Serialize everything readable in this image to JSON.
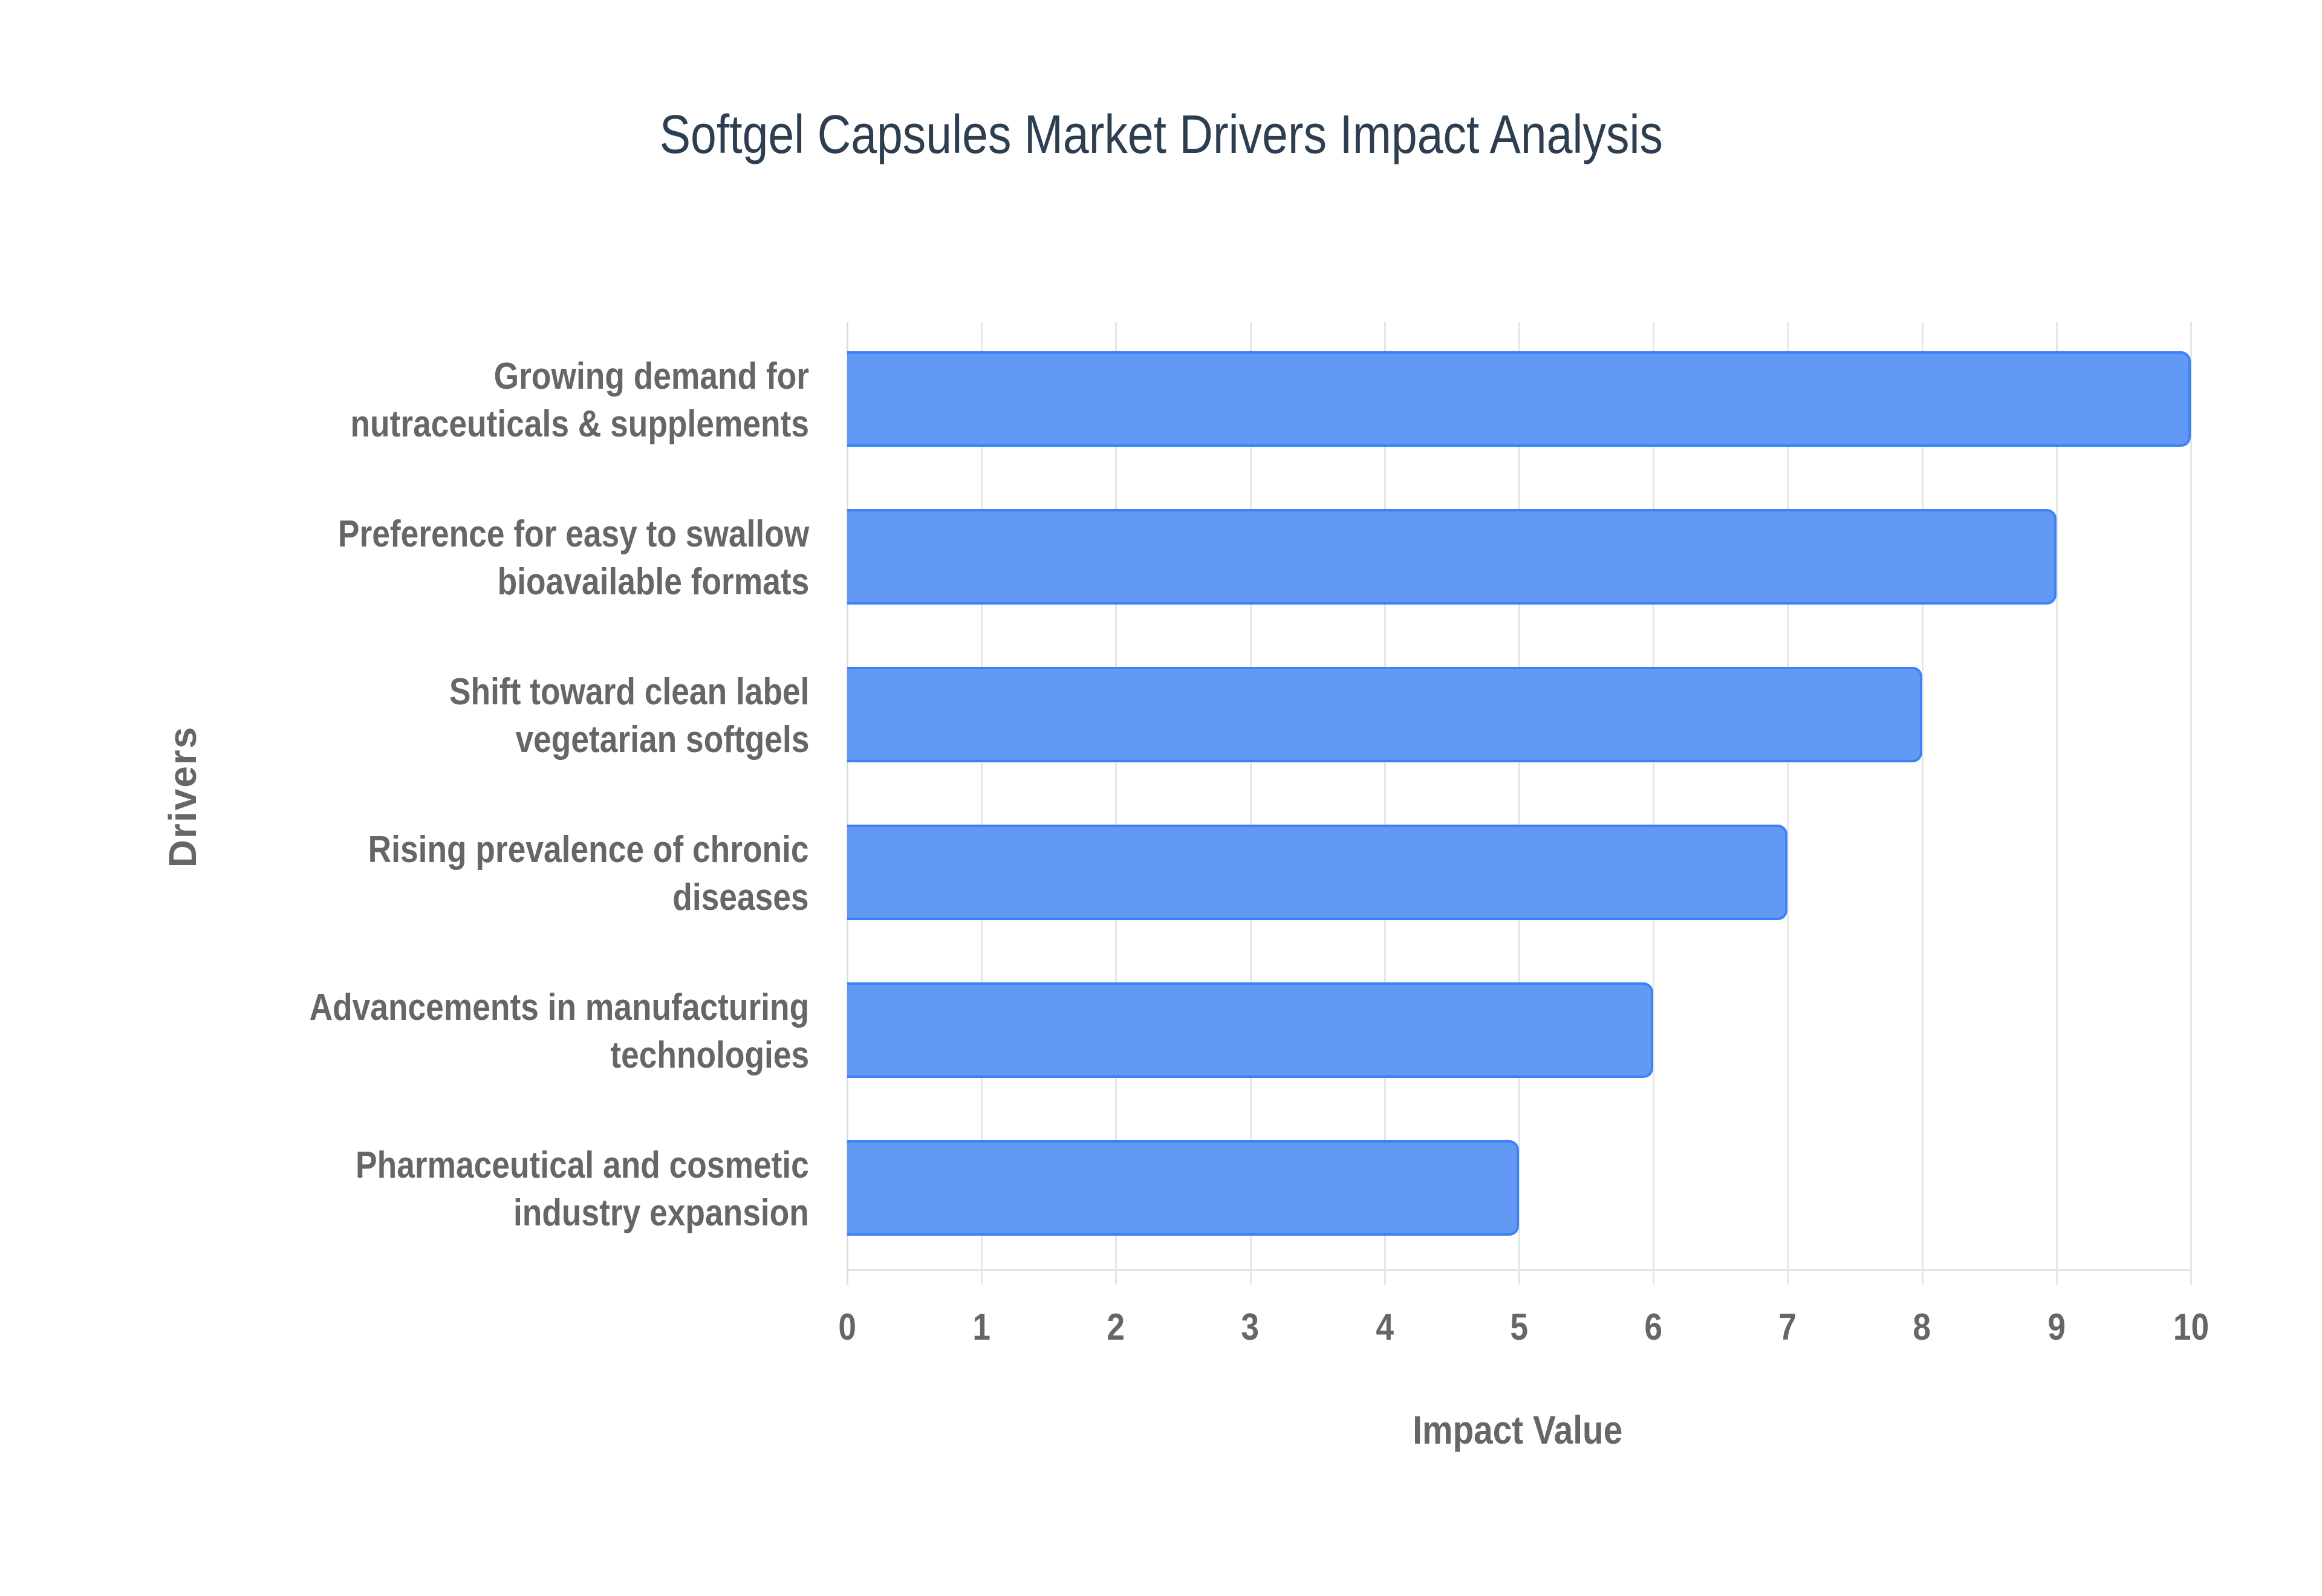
{
  "title": "Softgel Capsules Market Drivers Impact Analysis",
  "axes": {
    "x_title": "Impact Value",
    "y_title": "Drivers",
    "x_ticks": [
      "0",
      "1",
      "2",
      "3",
      "4",
      "5",
      "6",
      "7",
      "8",
      "9",
      "10"
    ]
  },
  "colors": {
    "bar_fill": "#6299f5",
    "bar_border": "#3b82f6",
    "title": "#2c3e50",
    "label": "#666666",
    "grid": "#e6e6e6"
  },
  "rows": [
    {
      "label_lines": [
        "Growing demand for",
        "nutraceuticals & supplements"
      ],
      "value": 10
    },
    {
      "label_lines": [
        "Preference for easy to swallow",
        "bioavailable formats"
      ],
      "value": 9
    },
    {
      "label_lines": [
        "Shift toward clean label",
        "vegetarian softgels"
      ],
      "value": 8
    },
    {
      "label_lines": [
        "Rising prevalence of chronic",
        "diseases"
      ],
      "value": 7
    },
    {
      "label_lines": [
        "Advancements in manufacturing",
        "technologies"
      ],
      "value": 6
    },
    {
      "label_lines": [
        "Pharmaceutical and cosmetic",
        "industry expansion"
      ],
      "value": 5
    }
  ],
  "chart_data": {
    "type": "bar",
    "orientation": "horizontal",
    "title": "Softgel Capsules Market Drivers Impact Analysis",
    "xlabel": "Impact Value",
    "ylabel": "Drivers",
    "categories": [
      "Growing demand for nutraceuticals & supplements",
      "Preference for easy to swallow bioavailable formats",
      "Shift toward clean label vegetarian softgels",
      "Rising prevalence of chronic diseases",
      "Advancements in manufacturing technologies",
      "Pharmaceutical and cosmetic industry expansion"
    ],
    "values": [
      10,
      9,
      8,
      7,
      6,
      5
    ],
    "xlim": [
      0,
      10
    ],
    "x_ticks": [
      0,
      1,
      2,
      3,
      4,
      5,
      6,
      7,
      8,
      9,
      10
    ],
    "grid": {
      "vertical": true,
      "horizontal": false
    },
    "legend": null
  }
}
